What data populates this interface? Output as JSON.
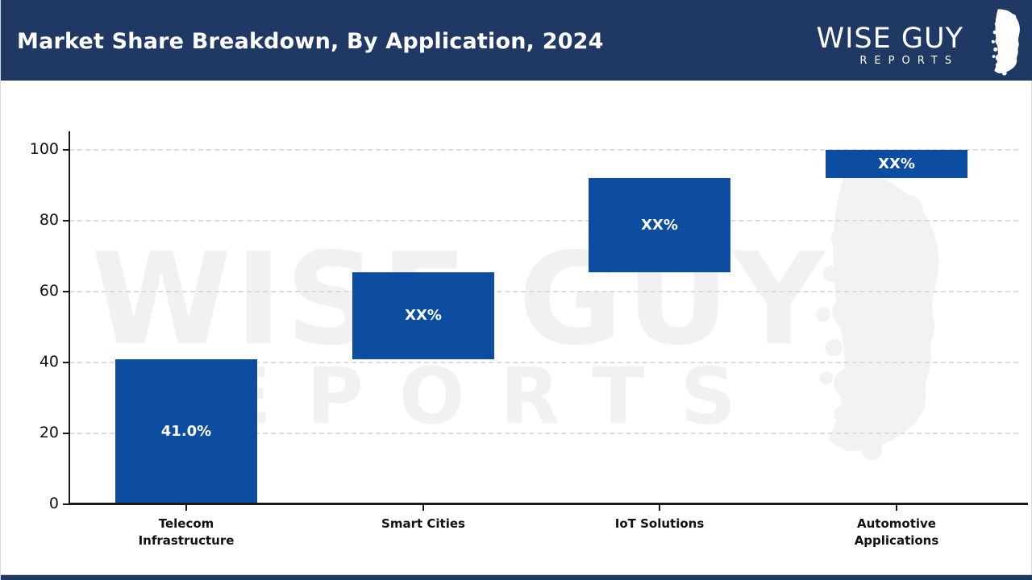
{
  "chart_data": {
    "type": "bar",
    "variant": "waterfall",
    "title": "Market Share Breakdown, By Application, 2024",
    "categories": [
      "Telecom Infrastructure",
      "Smart Cities",
      "IoT Solutions",
      "Automotive Applications"
    ],
    "series": [
      {
        "name": "Market Share",
        "segments": [
          {
            "category": "Telecom Infrastructure",
            "start": 0,
            "end": 41.0,
            "label": "41.0%"
          },
          {
            "category": "Smart Cities",
            "start": 41.0,
            "end": 65.5,
            "label": "XX%"
          },
          {
            "category": "IoT Solutions",
            "start": 65.5,
            "end": 92.0,
            "label": "XX%"
          },
          {
            "category": "Automotive Applications",
            "start": 92.0,
            "end": 100.0,
            "label": "XX%"
          }
        ]
      }
    ],
    "xlabel": "",
    "ylabel": "",
    "y_ticks": [
      0,
      20,
      40,
      60,
      80,
      100
    ],
    "ylim": [
      0,
      105
    ],
    "grid": "horizontal-dashed",
    "legend": "none",
    "bar_color": "#0c4da2",
    "bar_label_color": "#ffffff"
  },
  "branding": {
    "logo_line1": "WISE GUY",
    "logo_line2": "REPORTS",
    "watermark_line1": "WISE GUY",
    "watermark_line2": "REPORTS"
  },
  "colors": {
    "header_bg": "#1f3864",
    "footer_bg": "#1f3864",
    "bar": "#0c4da2",
    "grid": "#dcdcdc",
    "axis": "#1a1a1a",
    "watermark": "#f1f1f1",
    "title_text": "#ffffff"
  }
}
